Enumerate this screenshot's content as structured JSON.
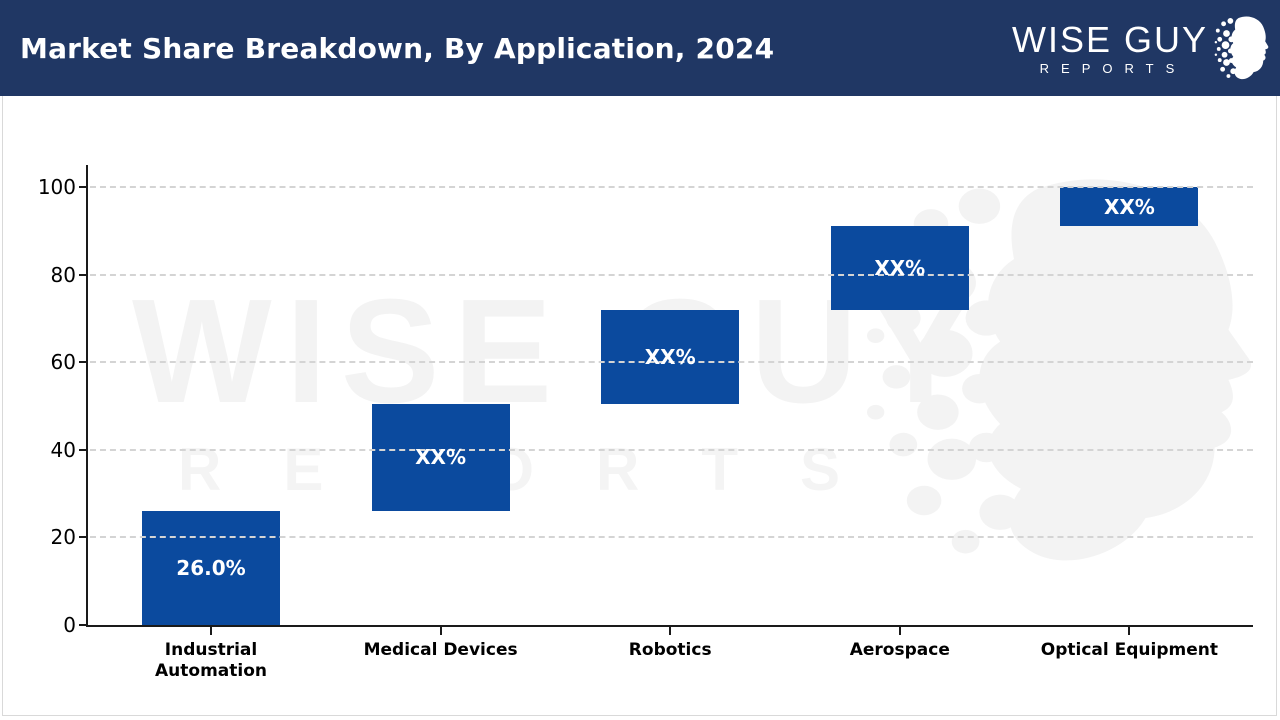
{
  "header": {
    "title": "Market Share Breakdown, By Application, 2024",
    "bg_color": "#203764"
  },
  "logo": {
    "name": "WISE GUY",
    "subtitle": "REPORTS"
  },
  "watermark": {
    "line1": "WISE GUY",
    "line2": "REPORTS"
  },
  "chart_data": {
    "type": "bar",
    "subtype": "waterfall-floating-bars",
    "title": "Market Share Breakdown, By Application, 2024",
    "categories": [
      "Industrial Automation",
      "Medical Devices",
      "Robotics",
      "Aerospace",
      "Optical Equipment"
    ],
    "series": [
      {
        "category": "Industrial Automation",
        "label_lines": [
          "Industrial",
          "Automation"
        ],
        "start": 0,
        "end": 26,
        "bar_label": "26.0%"
      },
      {
        "category": "Medical Devices",
        "label_lines": [
          "Medical Devices"
        ],
        "start": 26,
        "end": 50.5,
        "bar_label": "XX%"
      },
      {
        "category": "Robotics",
        "label_lines": [
          "Robotics"
        ],
        "start": 50.5,
        "end": 72,
        "bar_label": "XX%"
      },
      {
        "category": "Aerospace",
        "label_lines": [
          "Aerospace"
        ],
        "start": 72,
        "end": 91,
        "bar_label": "XX%"
      },
      {
        "category": "Optical Equipment",
        "label_lines": [
          "Optical Equipment"
        ],
        "start": 91,
        "end": 100,
        "bar_label": "XX%"
      }
    ],
    "yticks": [
      0,
      20,
      40,
      60,
      80,
      100
    ],
    "ylim": [
      0,
      105
    ],
    "xlabel": "",
    "ylabel": "",
    "grid": {
      "axis": "y",
      "style": "dashed",
      "color": "#d4d4d4",
      "drawn_on_top_of_bars": true
    },
    "legend": null,
    "bar_color": "#0b4a9e",
    "bar_label_color": "#ffffff",
    "axis_color": "#1a1a1a",
    "tick_label_color": "#000000"
  }
}
